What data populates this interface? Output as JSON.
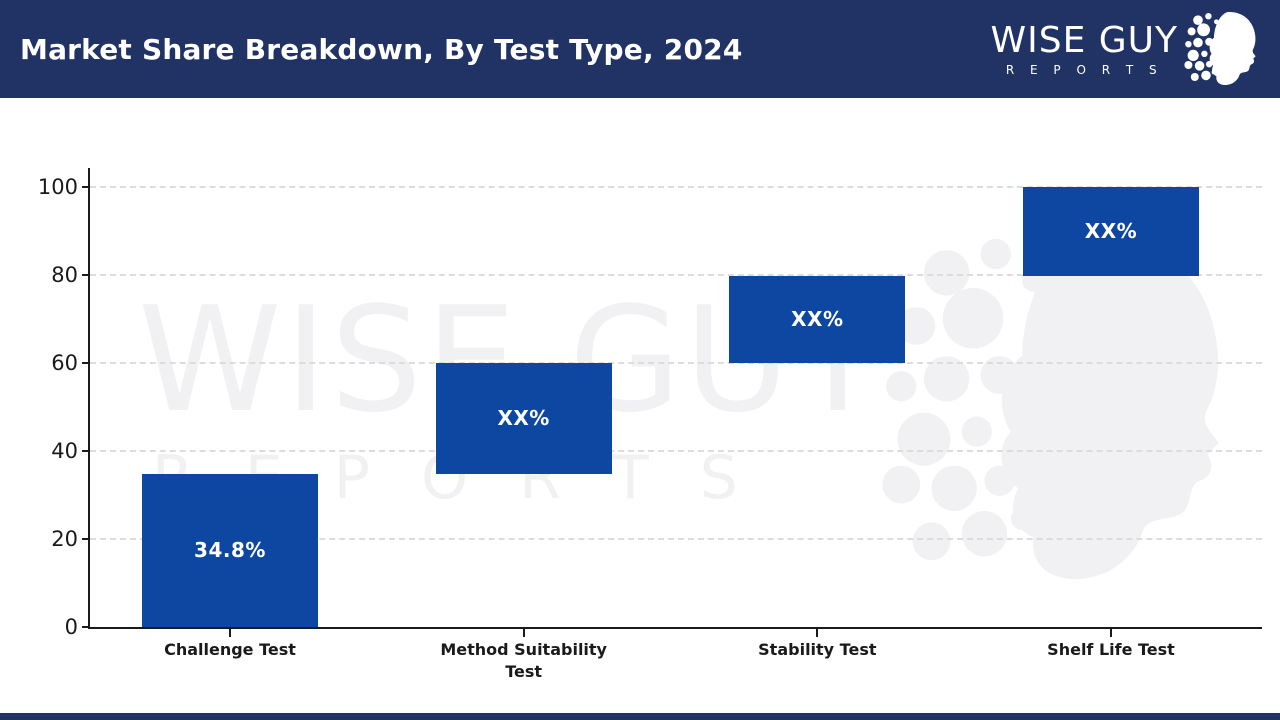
{
  "header": {
    "title": "Market Share Breakdown, By Test Type, 2024",
    "logo": {
      "brand": "WISE GUY",
      "sub": "R E P O R T S"
    }
  },
  "watermark": {
    "brand": "WISE GUY",
    "sub": "R E P O R T S"
  },
  "chart_data": {
    "type": "bar",
    "subtype": "waterfall",
    "title": "Market Share Breakdown, By Test Type, 2024",
    "categories": [
      "Challenge Test",
      "Method Suitability Test",
      "Stability Test",
      "Shelf Life Test"
    ],
    "bars": [
      {
        "category": "Challenge Test",
        "start": 0,
        "end": 34.8,
        "label": "34.8%"
      },
      {
        "category": "Method Suitability Test",
        "start": 34.8,
        "end": 60,
        "label": "XX%"
      },
      {
        "category": "Stability Test",
        "start": 60,
        "end": 79.8,
        "label": "XX%"
      },
      {
        "category": "Shelf Life Test",
        "start": 79.8,
        "end": 100,
        "label": "XX%"
      }
    ],
    "xlabel": "",
    "ylabel": "",
    "ylim": [
      0,
      100
    ],
    "yticks": [
      0,
      20,
      40,
      60,
      80,
      100
    ],
    "grid": "horizontal-dashed",
    "legend": "none"
  },
  "colors": {
    "header_bg": "#213364",
    "footer_bg": "#213364",
    "bar": "#0d47a1",
    "bar_label": "#ffffff",
    "axis": "#1a1a1a",
    "grid": "#dcdcdc",
    "watermark": "#f1f1f3",
    "title_text": "#ffffff"
  }
}
